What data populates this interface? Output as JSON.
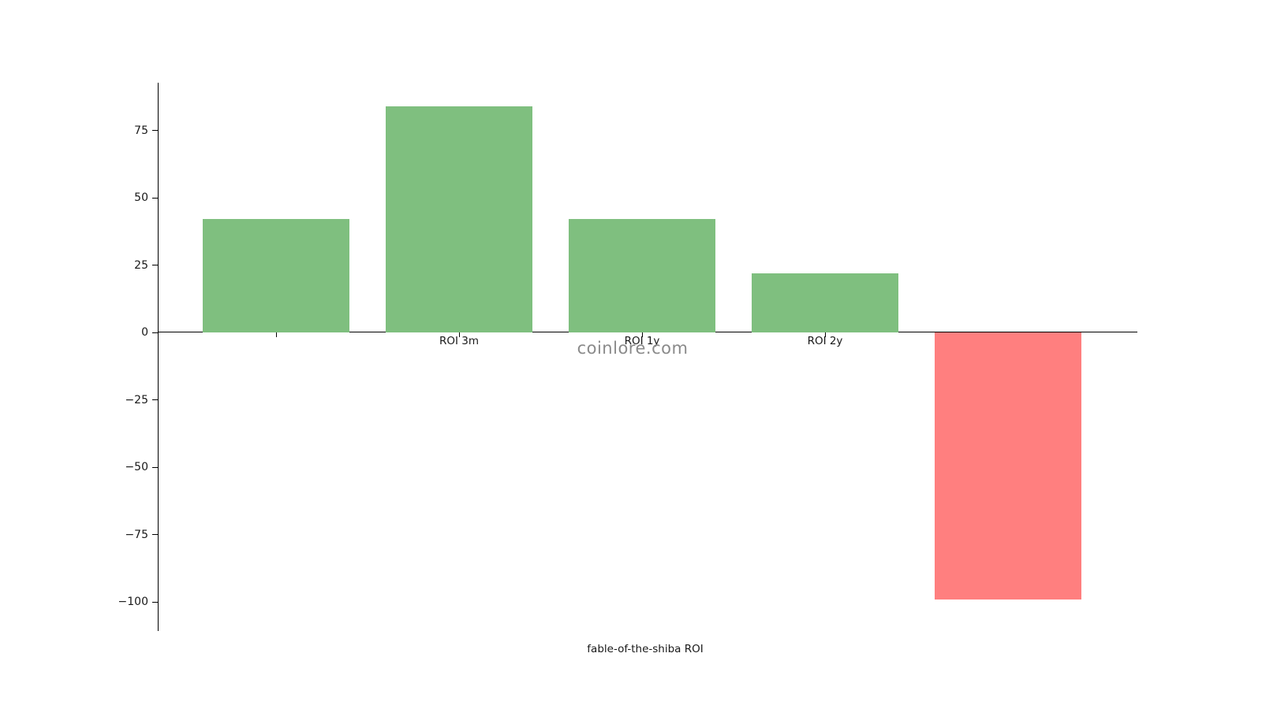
{
  "page": {
    "background": "#ffffff"
  },
  "chart_data": {
    "type": "bar",
    "title": "fable-of-the-shiba ROI",
    "watermark": "coinlore.com",
    "categories": [
      "",
      "ROI 3m",
      "ROI 1y",
      "ROI 2y",
      ""
    ],
    "values": [
      42,
      84,
      42,
      22,
      -99
    ],
    "bar_colors": [
      "#7fbf7f",
      "#7fbf7f",
      "#7fbf7f",
      "#7fbf7f",
      "#ff7f7f"
    ],
    "positive_color": "#7fbf7f",
    "negative_color": "#ff7f7f",
    "axis_color": "#000000",
    "text_color": "#191919",
    "watermark_color": "#8a8a8a",
    "y_ticks": [
      {
        "value": 75,
        "label": "75"
      },
      {
        "value": 50,
        "label": "50"
      },
      {
        "value": 25,
        "label": "25"
      },
      {
        "value": 0,
        "label": "0"
      },
      {
        "value": -25,
        "label": "−25"
      },
      {
        "value": -50,
        "label": "−50"
      },
      {
        "value": -75,
        "label": "−75"
      },
      {
        "value": -100,
        "label": "−100"
      }
    ],
    "ylim": [
      -111,
      93
    ],
    "xlabel": "",
    "ylabel": "",
    "grid": false,
    "legend": null
  }
}
